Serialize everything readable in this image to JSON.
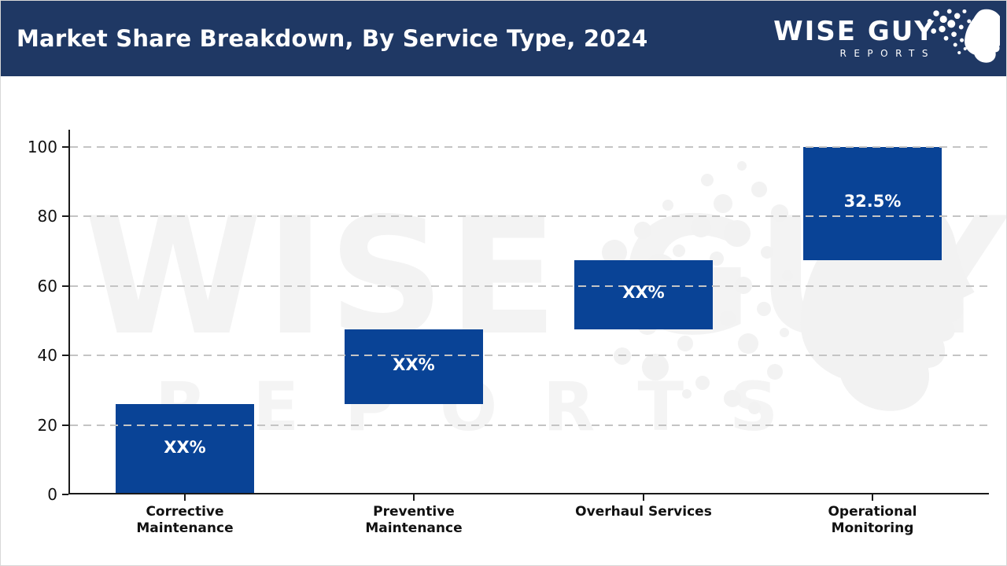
{
  "header": {
    "title": "Market Share Breakdown, By Service Type, 2024",
    "logo": {
      "primary": "WISE GUY",
      "secondary": "REPORTS"
    }
  },
  "watermark": {
    "primary": "WISE GUY",
    "secondary": "REPORTS"
  },
  "chart_data": {
    "type": "bar",
    "subtype": "floating-waterfall",
    "title": "Market Share Breakdown, By Service Type, 2024",
    "categories": [
      "Corrective\nMaintenance",
      "Preventive\nMaintenance",
      "Overhaul Services",
      "Operational\nMonitoring"
    ],
    "segments": [
      {
        "category": "Corrective Maintenance",
        "start": 0,
        "end": 26,
        "label": "XX%"
      },
      {
        "category": "Preventive Maintenance",
        "start": 26,
        "end": 47.5,
        "label": "XX%"
      },
      {
        "category": "Overhaul Services",
        "start": 47.5,
        "end": 67.5,
        "label": "XX%"
      },
      {
        "category": "Operational Monitoring",
        "start": 67.5,
        "end": 100,
        "label": "32.5%"
      }
    ],
    "yticks": [
      0,
      20,
      40,
      60,
      80,
      100
    ],
    "ylim": [
      0,
      105
    ],
    "xlabel": "",
    "ylabel": "",
    "grid": "horizontal-dashed",
    "legend": "none",
    "bar_color": "#094396",
    "bar_label_color": "#ffffff"
  },
  "colors": {
    "header_bg": "#1f3864",
    "header_text": "#ffffff",
    "bar": "#094396",
    "axis": "#1a1a1a",
    "gridline": "#c4c4c4",
    "tick_text": "#111111",
    "watermark": "#f3f3f3"
  }
}
